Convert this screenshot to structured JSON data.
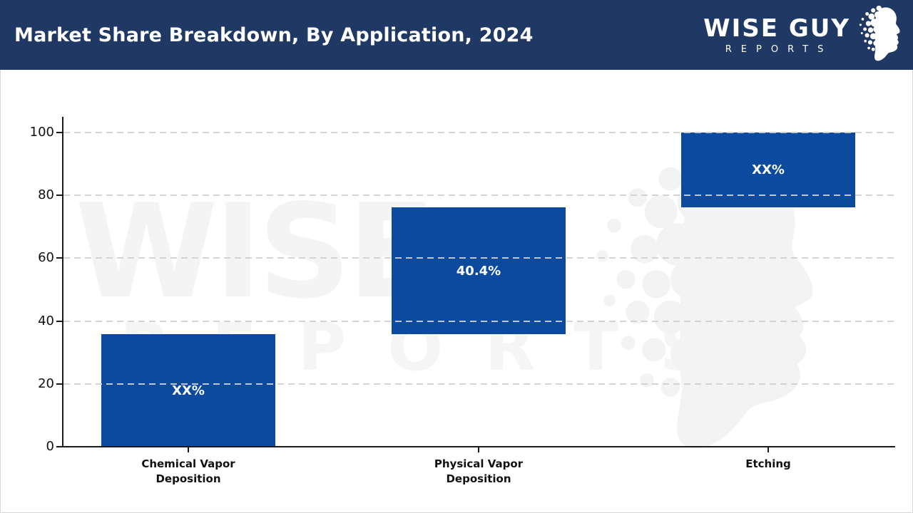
{
  "header": {
    "title": "Market Share Breakdown, By Application, 2024",
    "bg_color": "#1f3864"
  },
  "logo": {
    "name": "WISE GUY",
    "subname": "REPORTS"
  },
  "watermark": {
    "word": "WISE",
    "word2": "REPORTS"
  },
  "chart_data": {
    "type": "bar",
    "subtype": "waterfall-segments",
    "title": "Market Share Breakdown, By Application, 2024",
    "xlabel": "",
    "ylabel": "",
    "ylim": [
      0,
      105
    ],
    "yticks": [
      0,
      20,
      40,
      60,
      80,
      100
    ],
    "grid": true,
    "grid_style": "dashed",
    "legend": "none",
    "bar_color": "#0b4a9e",
    "label_color": "#ffffff",
    "categories": [
      "Chemical Vapor Deposition",
      "Physical Vapor Deposition",
      "Etching"
    ],
    "category_lines": [
      [
        "Chemical Vapor",
        "Deposition"
      ],
      [
        "Physical Vapor",
        "Deposition"
      ],
      [
        "Etching"
      ]
    ],
    "segments": [
      {
        "category": "Chemical Vapor Deposition",
        "start": 0,
        "end": 35.8,
        "value": 35.8,
        "label": "XX%"
      },
      {
        "category": "Physical Vapor Deposition",
        "start": 35.8,
        "end": 76.2,
        "value": 40.4,
        "label": "40.4%"
      },
      {
        "category": "Etching",
        "start": 76.2,
        "end": 100,
        "value": 23.8,
        "label": "XX%"
      }
    ]
  }
}
